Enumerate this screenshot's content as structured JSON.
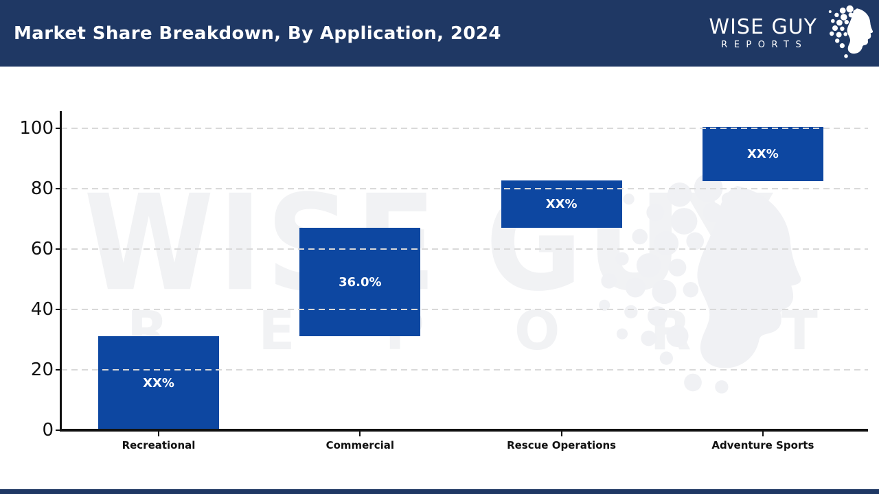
{
  "header": {
    "title": "Market Share Breakdown, By Application, 2024",
    "background_color": "#1f3864",
    "logo": {
      "wordmark": "WISE GUY",
      "subtitle": "REPORTS",
      "icon": "dotted-head-profile"
    }
  },
  "watermark": {
    "line1": "WISE GUY",
    "line2": "R E P O R T S",
    "icon": "dotted-head-profile"
  },
  "chart_data": {
    "type": "bar",
    "subtype": "floating-waterfall",
    "title": "Market Share Breakdown, By Application, 2024",
    "categories": [
      "Recreational",
      "Commercial",
      "Rescue Operations",
      "Adventure Sports"
    ],
    "bars": [
      {
        "category": "Recreational",
        "label": "XX%",
        "start": 0,
        "end": 31
      },
      {
        "category": "Commercial",
        "label": "36.0%",
        "start": 31,
        "end": 67,
        "value": 36.0
      },
      {
        "category": "Rescue Operations",
        "label": "XX%",
        "start": 67,
        "end": 82.7
      },
      {
        "category": "Adventure Sports",
        "label": "XX%",
        "start": 82.5,
        "end": 100.5
      }
    ],
    "xlabel": "",
    "ylabel": "",
    "ylim": [
      0,
      100
    ],
    "yticks": [
      0,
      20,
      40,
      60,
      80,
      100
    ],
    "grid": {
      "horizontal": true,
      "style": "dashed",
      "color": "#d9d9d9",
      "drawn_above_bars": true
    },
    "legend": null,
    "bar_color": "#0d47a1",
    "bar_label_color": "#ffffff",
    "axis_color": "#111111"
  },
  "footer": {
    "background_color": "#1f3864"
  }
}
